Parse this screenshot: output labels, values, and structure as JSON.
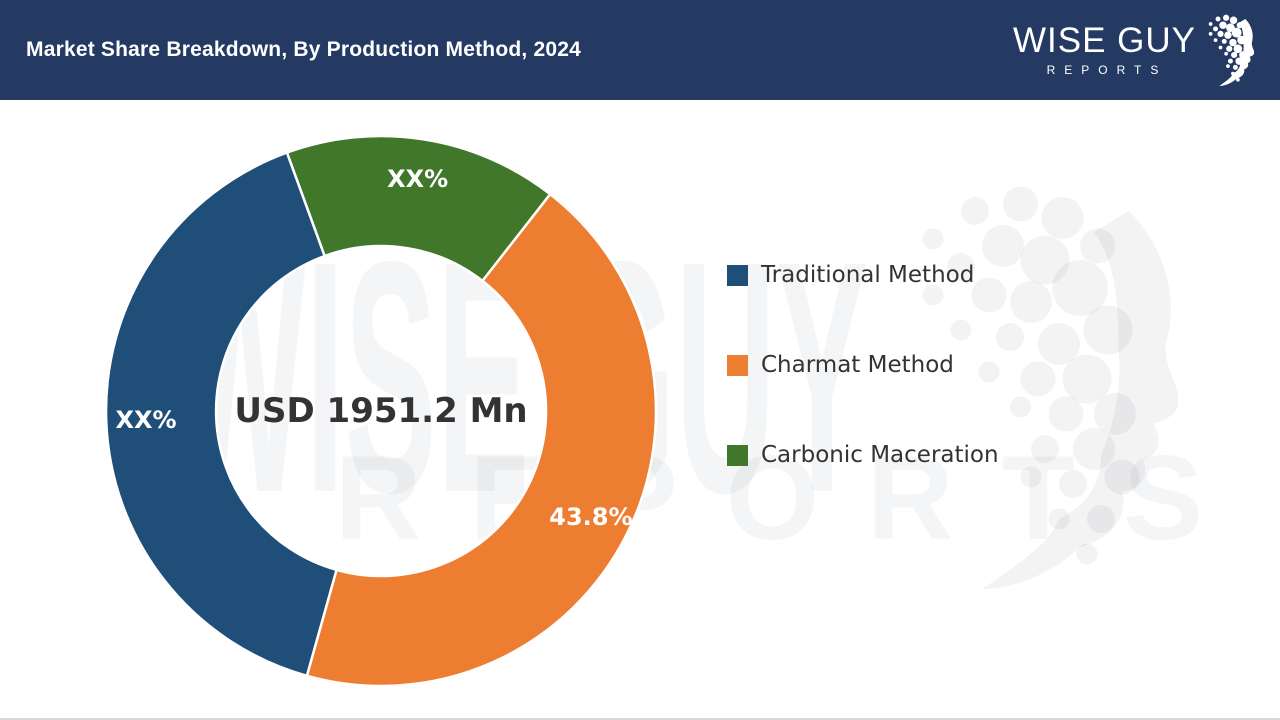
{
  "header": {
    "title": "Market Share Breakdown, By Production Method, 2024",
    "logo": {
      "line1": "WISE GUY",
      "line2": "REPORTS"
    }
  },
  "chart_data": {
    "type": "pie",
    "subtype": "donut",
    "title": "Market Share Breakdown, By Production Method, 2024",
    "center_label": "USD 1951.2 Mn",
    "unit": "percent of market share",
    "series": [
      {
        "name": "Traditional Method",
        "label": "XX%",
        "value": 40.1,
        "color": "#1F4E79"
      },
      {
        "name": "Charmat Method",
        "label": "43.8%",
        "value": 43.8,
        "color": "#ED7D31"
      },
      {
        "name": "Carbonic Maceration",
        "label": "XX%",
        "value": 16.1,
        "color": "#41772A"
      }
    ],
    "draw": {
      "start_angle_deg": 110,
      "clockwise": true,
      "order": [
        2,
        1,
        0
      ],
      "inner_radius_ratio": 0.6,
      "label_radius_ratio": 0.855
    },
    "legend_position": "right",
    "grid": false
  },
  "watermark": {
    "line1": "WISE GUY",
    "line2": "REPORTS"
  },
  "colors": {
    "header_bg": "#243A63",
    "page_bg": "#FFFFFF",
    "title_text": "#FFFFFF",
    "center_text": "#333333",
    "legend_text": "#333333",
    "segment_label_text": "#FFFFFF",
    "bottom_hairline": "#D9D9D9"
  }
}
